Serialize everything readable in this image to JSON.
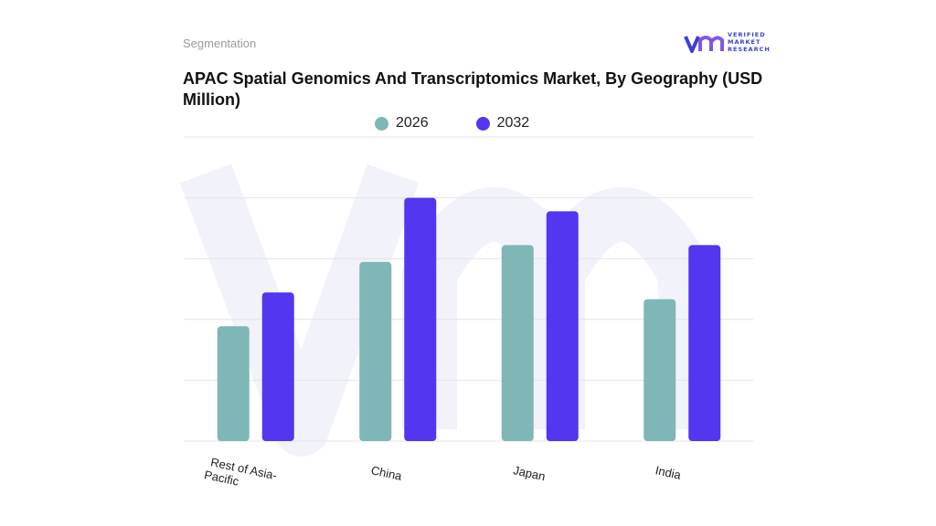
{
  "header": {
    "segment": "Segmentation",
    "title": "APAC Spatial Genomics And Transcriptomics Market, By Geography (USD Million)"
  },
  "logo": {
    "mark": "vmr",
    "lines": [
      "VERIFIED",
      "MARKET",
      "RESEARCH"
    ],
    "icon": "vmr-logo-icon"
  },
  "colors": {
    "series_2026": "#7fb6b6",
    "series_2032": "#5236f0",
    "grid": "#e4e4e4",
    "watermark": "#f1f2fa"
  },
  "chart_data": {
    "type": "bar",
    "title": "APAC Spatial Genomics And Transcriptomics Market, By Geography (USD Million)",
    "xlabel": "",
    "ylabel": "",
    "categories": [
      "Rest of Asia-Pacific",
      "China",
      "Japan",
      "India"
    ],
    "series": [
      {
        "name": "2026",
        "values": [
          34,
          53,
          58,
          42
        ]
      },
      {
        "name": "2032",
        "values": [
          44,
          72,
          68,
          58
        ]
      }
    ],
    "ylim": [
      0,
      90
    ],
    "grid": true,
    "legend": "top-center"
  }
}
